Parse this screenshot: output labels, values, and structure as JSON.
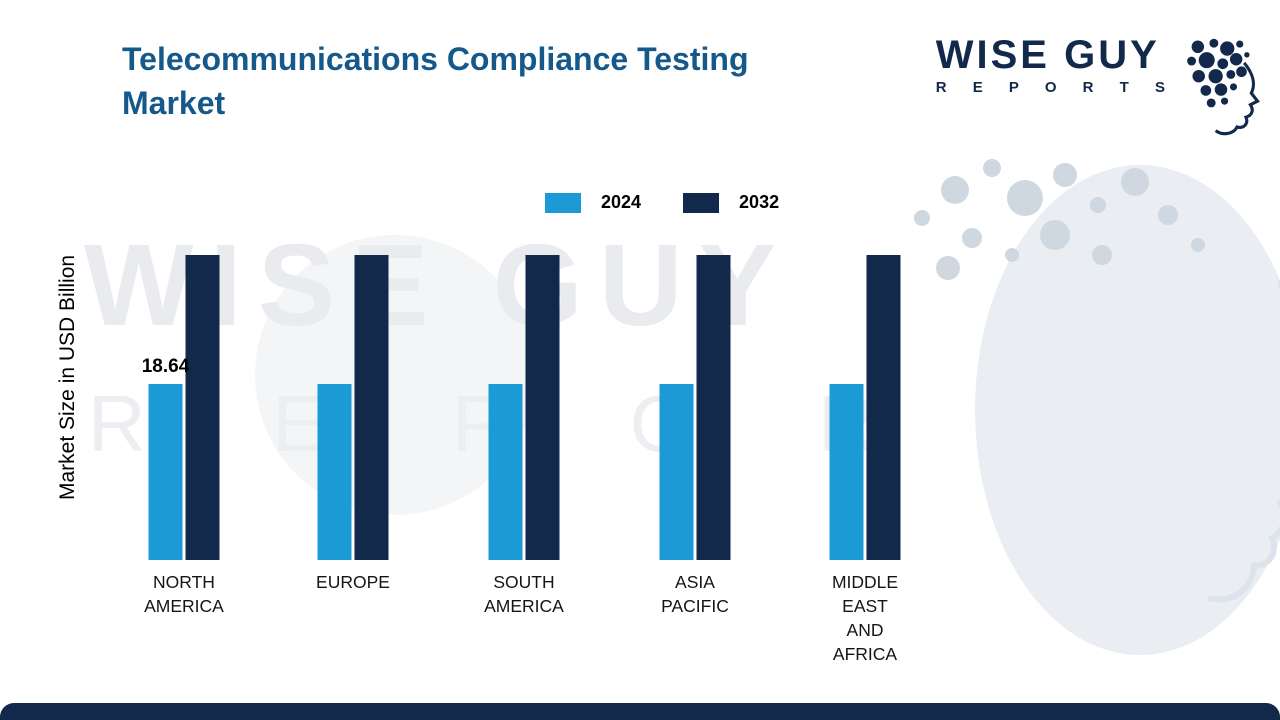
{
  "header": {
    "title": "Telecommunications Compliance Testing Market"
  },
  "logo": {
    "name": "WISE GUY",
    "subtitle": "R E P O R T S"
  },
  "watermark": {
    "line1": "WISE GUY",
    "line2": "R E P O R T S"
  },
  "chart_data": {
    "type": "bar",
    "title": "Telecommunications Compliance Testing Market",
    "xlabel": "",
    "ylabel": "Market Size in USD Billion",
    "categories": [
      "NORTH\nAMERICA",
      "EUROPE",
      "SOUTH\nAMERICA",
      "ASIA\nPACIFIC",
      "MIDDLE\nEAST\nAND\nAFRICA"
    ],
    "series": [
      {
        "name": "2024",
        "color": "#1b9ad6",
        "values": [
          18.64,
          18.64,
          18.64,
          18.64,
          18.64
        ]
      },
      {
        "name": "2032",
        "color": "#12294b",
        "values": [
          32.4,
          32.4,
          32.4,
          32.4,
          32.4
        ]
      }
    ],
    "value_labels": [
      "18.64",
      "",
      "",
      "",
      ""
    ],
    "ylim": [
      0,
      35
    ],
    "grid": false,
    "legend_position": "top"
  },
  "colors": {
    "accent_blue": "#1b9ad6",
    "navy": "#12294b",
    "title_blue": "#15588a",
    "watermark_gray": "#e9ebee"
  }
}
